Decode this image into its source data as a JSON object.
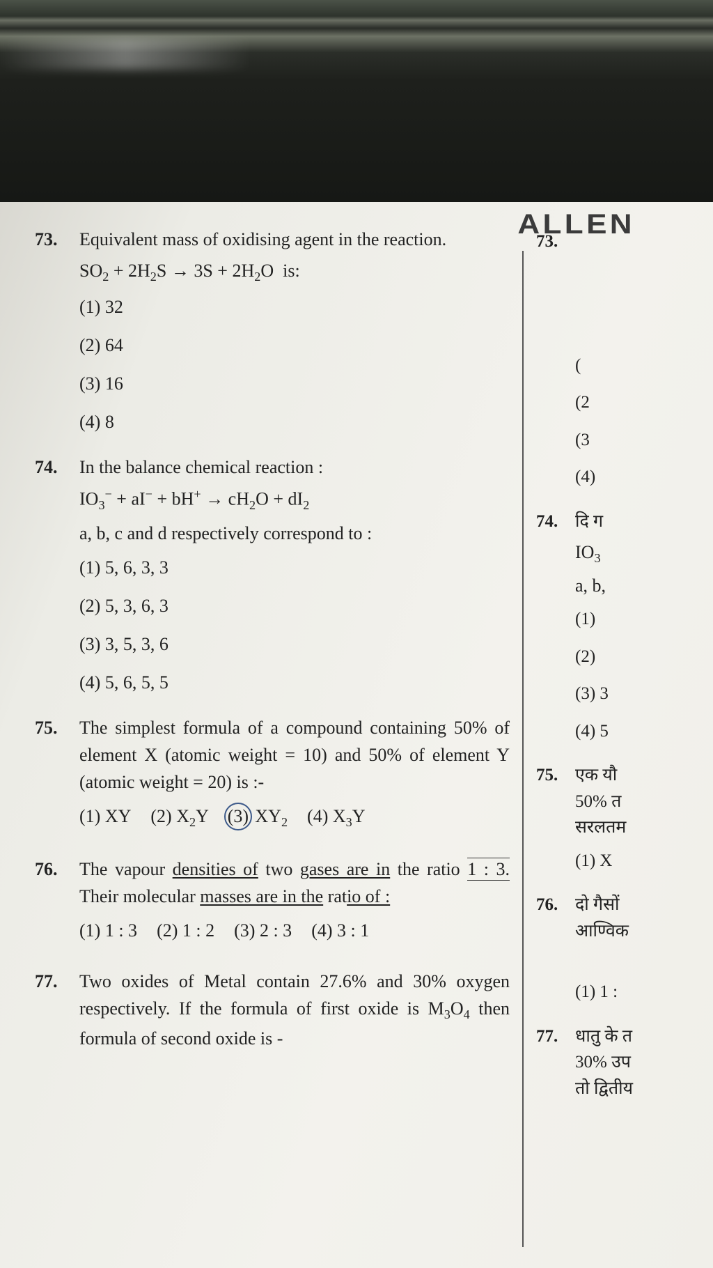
{
  "brand": "ALLEN",
  "left": {
    "q73": {
      "num": "73.",
      "text": "Equivalent mass of oxidising agent in the reaction.",
      "formula_html": "SO<sub>2</sub> + 2H<sub>2</sub>S &rarr; 3S + 2H<sub>2</sub>O&nbsp;&nbsp;is:",
      "opts": [
        {
          "k": "(1)",
          "v": "32"
        },
        {
          "k": "(2)",
          "v": "64"
        },
        {
          "k": "(3)",
          "v": "16"
        },
        {
          "k": "(4)",
          "v": "8"
        }
      ]
    },
    "q74": {
      "num": "74.",
      "text": "In the balance chemical reaction :",
      "formula_html": "IO<sub>3</sub><sup>&minus;</sup> + aI<sup>&minus;</sup> + bH<sup>+</sup> &rarr; cH<sub>2</sub>O + dI<sub>2</sub>",
      "sub": "a, b, c and d respectively correspond to :",
      "opts": [
        {
          "k": "(1)",
          "v": "5, 6, 3, 3"
        },
        {
          "k": "(2)",
          "v": "5, 3, 6, 3"
        },
        {
          "k": "(3)",
          "v": "3, 5, 3, 6"
        },
        {
          "k": "(4)",
          "v": "5, 6, 5, 5"
        }
      ]
    },
    "q75": {
      "num": "75.",
      "text": "The simplest formula of a compound containing 50% of element X (atomic weight = 10) and 50% of element Y (atomic weight = 20) is :-",
      "opts_html": [
        "<span>(1)</span>&nbsp;XY",
        "<span>(2)</span>&nbsp;X<sub>2</sub>Y",
        "<span class=\"marked\">(3)</span>&nbsp;XY<sub>2</sub>",
        "<span>(4)</span>&nbsp;X<sub>3</sub>Y"
      ]
    },
    "q76": {
      "num": "76.",
      "text_html": "The vapour <span class=\"und\">densities of</span> two <span class=\"und\">gases are in</span> the ratio <span class=\"u2\">1 : 3.</span> Their molecular <span class=\"und\">masses are in the</span> rat<span class=\"und\">io of :</span>",
      "opts": [
        {
          "k": "(1)",
          "v": "1 : 3"
        },
        {
          "k": "(2)",
          "v": "1 : 2"
        },
        {
          "k": "(3)",
          "v": "2 : 3"
        },
        {
          "k": "(4)",
          "v": "3 : 1"
        }
      ]
    },
    "q77": {
      "num": "77.",
      "text_html": "Two oxides of Metal contain 27.6% and 30% oxygen respectively. If the formula of first oxide is M<sub>3</sub>O<sub>4</sub> then formula of second oxide is -"
    }
  },
  "right": {
    "q73": {
      "num": "73.",
      "frags": [
        "(",
        "(2",
        "(3",
        "(4)"
      ]
    },
    "q74": {
      "num": "74.",
      "text": "दि ग",
      "formula_html": "IO<sub>3</sub>",
      "sub": "a, b,",
      "opts": [
        "(1)",
        "(2)",
        "(3) 3",
        "(4) 5"
      ]
    },
    "q75": {
      "num": "75.",
      "lines": [
        "एक यौ",
        "50% त",
        "सरलतम"
      ],
      "opt": "(1) X"
    },
    "q76": {
      "num": "76.",
      "lines": [
        "दो गैसों",
        "आण्विक"
      ],
      "opt": "(1) 1 :"
    },
    "q77": {
      "num": "77.",
      "lines": [
        "धातु के त",
        "30% उप",
        "तो द्वितीय"
      ]
    }
  }
}
